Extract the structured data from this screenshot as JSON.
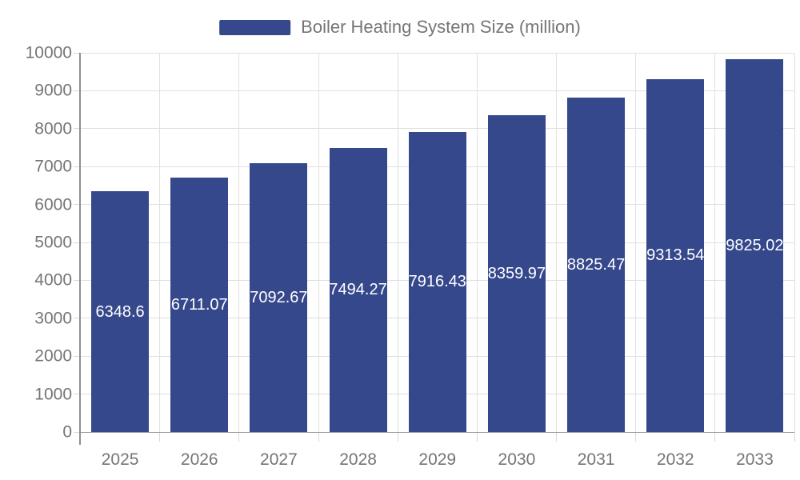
{
  "legend": {
    "label": "Boiler Heating System Size (million)"
  },
  "chart_data": {
    "type": "bar",
    "title": "Boiler Heating System Size (million)",
    "categories": [
      "2025",
      "2026",
      "2027",
      "2028",
      "2029",
      "2030",
      "2031",
      "2032",
      "2033"
    ],
    "values": [
      6348.6,
      6711.07,
      7092.67,
      7494.27,
      7916.43,
      8359.97,
      8825.47,
      9313.54,
      9825.02
    ],
    "value_labels": [
      "6348.6",
      "6711.07",
      "7092.67",
      "7494.27",
      "7916.43",
      "8359.97",
      "8825.47",
      "9313.54",
      "9825.02"
    ],
    "xlabel": "",
    "ylabel": "",
    "ylim": [
      0,
      10000
    ],
    "y_ticks": [
      "0",
      "1000",
      "2000",
      "3000",
      "4000",
      "5000",
      "6000",
      "7000",
      "8000",
      "9000",
      "10000"
    ],
    "grid": true,
    "legend_position": "top-center",
    "colors": {
      "bar": "#36488C",
      "bar_value_label": "#ffffff",
      "gridline": "#e0e0e0",
      "tick": "#d9d9d9",
      "y_axis_line": "#8f8f8f",
      "x_axis_line": "#9a9a9a",
      "axis_text": "#757575",
      "legend_text": "#757575",
      "background": "#ffffff"
    }
  }
}
